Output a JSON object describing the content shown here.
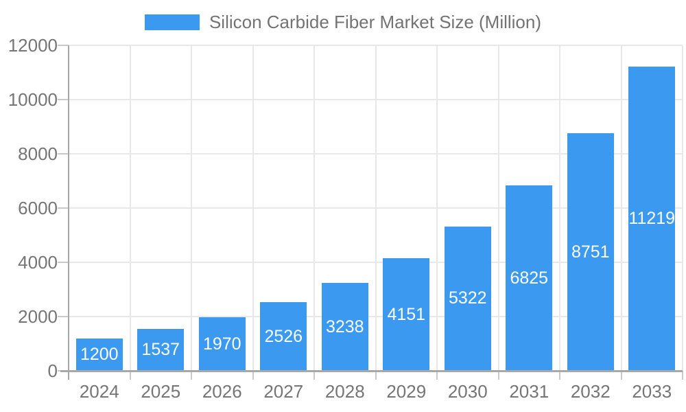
{
  "chart_data": {
    "type": "bar",
    "title": "",
    "legend": "Silicon Carbide Fiber Market Size (Million)",
    "legend_position": "top",
    "categories": [
      "2024",
      "2025",
      "2026",
      "2027",
      "2028",
      "2029",
      "2030",
      "2031",
      "2032",
      "2033"
    ],
    "series": [
      {
        "name": "Silicon Carbide Fiber Market Size (Million)",
        "values": [
          1200,
          1537,
          1970,
          2526,
          3238,
          4151,
          5322,
          6825,
          8751,
          11219
        ]
      }
    ],
    "xlabel": "",
    "ylabel": "",
    "ylim": [
      0,
      12000
    ],
    "ytick_step": 2000,
    "ytick_labels": [
      "0",
      "2000",
      "4000",
      "6000",
      "8000",
      "10000",
      "12000"
    ],
    "grid": true,
    "value_labels": "inside-center",
    "colors": {
      "bar": "#3B99F0",
      "value_label": "#FFFFFF",
      "axis_label": "#757575",
      "legend_text": "#737373",
      "gridline": "#E8E8E8",
      "axis_line": "#A8A8A8",
      "tick": "#C9C9C9",
      "background": "#FFFFFF"
    }
  }
}
